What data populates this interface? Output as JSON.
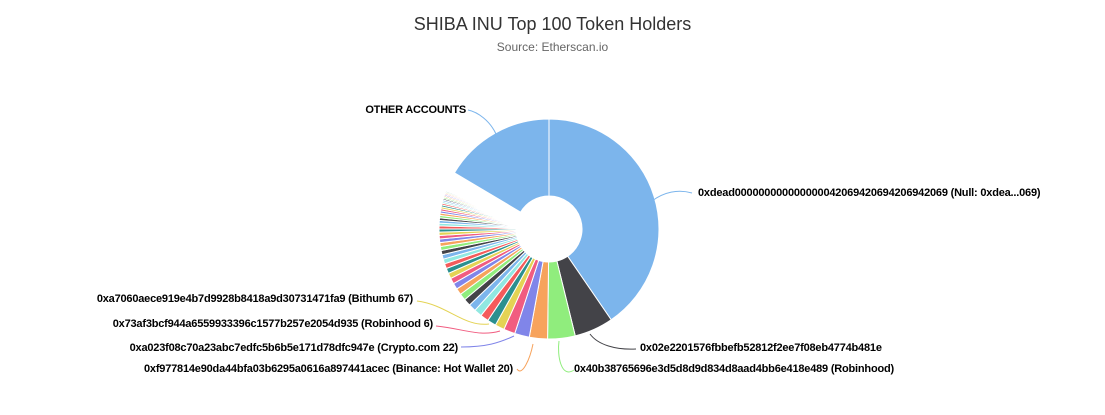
{
  "header": {
    "title": "SHIBA INU Top 100 Token Holders",
    "subtitle": "Source: Etherscan.io"
  },
  "chart_data": {
    "type": "pie",
    "title": "SHIBA INU Top 100 Token Holders",
    "subtitle": "Source: Etherscan.io",
    "legend": "none",
    "donut": true,
    "inner_radius_pct": 30,
    "start_angle_deg": 0,
    "direction": "clockwise",
    "units": "estimated share of supply (%)",
    "palette": [
      "#7cb5ec",
      "#434348",
      "#90ed7d",
      "#f7a35c",
      "#8085e9",
      "#f15c80",
      "#e4d354",
      "#2b908f",
      "#f45b5b",
      "#91e8e1"
    ],
    "slices": [
      {
        "name": "0xdead000000000000000042069420694206942069 (Null: 0xdea...069)",
        "value": 41.0,
        "color": "#7cb5ec",
        "labeled": true
      },
      {
        "name": "0x02e2201576fbbefb52812f2ee7f08eb4774b481e",
        "value": 5.8,
        "color": "#434348",
        "labeled": true
      },
      {
        "name": "0x40b38765696e3d5d8d9d834d8aad4bb6e418e489 (Robinhood)",
        "value": 4.1,
        "color": "#90ed7d",
        "labeled": true
      },
      {
        "name": "0xf977814e90da44bfa03b6295a0616a897441acec (Binance: Hot Wallet 20)",
        "value": 2.7,
        "color": "#f7a35c",
        "labeled": true
      },
      {
        "name": "0xa023f08c70a23abc7edfc5b6b5e171d78dfc947e (Crypto.com 22)",
        "value": 2.2,
        "color": "#8085e9",
        "labeled": true
      },
      {
        "name": "0x73af3bcf944a6559933396c1577b257e2054d935 (Robinhood 6)",
        "value": 1.7,
        "color": "#f15c80",
        "labeled": true
      },
      {
        "name": "0xa7060aece919e4b7d9928b8418a9d30731471fa9 (Bithumb 67)",
        "value": 1.4,
        "color": "#e4d354",
        "labeled": true
      }
    ],
    "unlabeled_small_holders": [
      1.3,
      1.235,
      1.173,
      1.114,
      1.059,
      1.006,
      0.956,
      0.908,
      0.862,
      0.819,
      0.778,
      0.739,
      0.702,
      0.667,
      0.634,
      0.602,
      0.572,
      0.543,
      0.516,
      0.49,
      0.466,
      0.443,
      0.421,
      0.4,
      0.38,
      0.361,
      0.343,
      0.326,
      0.309,
      0.294,
      0.279,
      0.265,
      0.252,
      0.239,
      0.227,
      0.216,
      0.205,
      0.195,
      0.185,
      0.176,
      0.167,
      0.159,
      0.151,
      0.143,
      0.136,
      0.129,
      0.123,
      0.117,
      0.111,
      0.105,
      0.1,
      0.095,
      0.09,
      0.086,
      0.082,
      0.078,
      0.074,
      0.07,
      0.066,
      0.063,
      0.06,
      0.057,
      0.054,
      0.051,
      0.049,
      0.046,
      0.044,
      0.042,
      0.04,
      0.038,
      0.036,
      0.034,
      0.032,
      0.031,
      0.029,
      0.028,
      0.026,
      0.025,
      0.024,
      0.023,
      0.021,
      0.02,
      0.019,
      0.018,
      0.017,
      0.017,
      0.016,
      0.015,
      0.014,
      0.014,
      0.013,
      0.012,
      0.012
    ],
    "other_accounts": {
      "name": "OTHER ACCOUNTS",
      "value": 16.7,
      "color": "#7cb5ec"
    }
  }
}
